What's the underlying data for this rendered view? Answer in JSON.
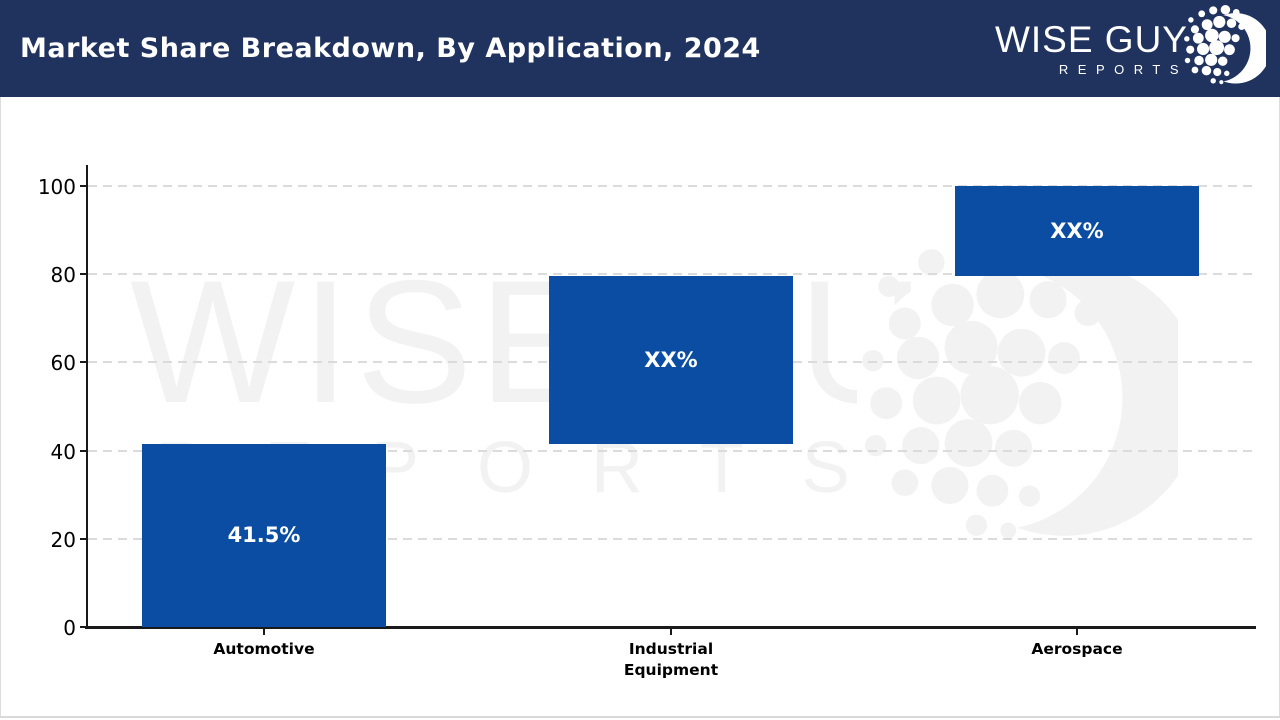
{
  "header": {
    "title": "Market Share Breakdown, By Application, 2024",
    "bg_color": "#20335F"
  },
  "logo": {
    "line1": "WISE GUY",
    "line2": "REPORTS"
  },
  "watermark": {
    "line1": "WISE GUY",
    "line2": "REPORTS"
  },
  "chart_data": {
    "type": "bar",
    "variant": "waterfall",
    "title": "Market Share Breakdown, By Application, 2024",
    "categories": [
      "Automotive",
      "Industrial Equipment",
      "Aerospace"
    ],
    "segments": [
      {
        "category": "Automotive",
        "start": 0,
        "end": 41.5,
        "label": "41.5%"
      },
      {
        "category": "Industrial Equipment",
        "start": 41.5,
        "end": 79.5,
        "label": "XX%"
      },
      {
        "category": "Aerospace",
        "start": 79.5,
        "end": 100,
        "label": "XX%"
      }
    ],
    "ylim": [
      0,
      100
    ],
    "yticks": [
      0,
      20,
      40,
      60,
      80,
      100
    ],
    "xlabel": "",
    "ylabel": "",
    "grid": "horizontal-dashed",
    "legend": "none",
    "bar_color": "#0B4DA2",
    "bar_label_color": "#FFFFFF",
    "axis_color": "#1A1A1A",
    "grid_color": "#DBDBDB"
  }
}
